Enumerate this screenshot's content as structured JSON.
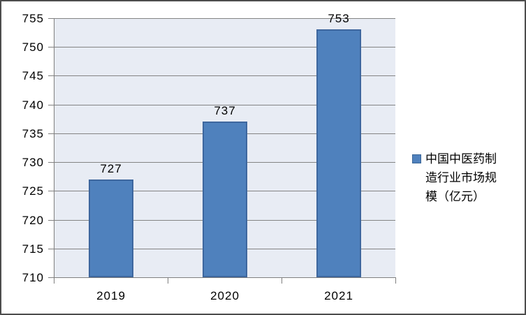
{
  "chart_data": {
    "type": "bar",
    "title": "",
    "categories": [
      "2019",
      "2020",
      "2021"
    ],
    "values": [
      727,
      737,
      753
    ],
    "bar_labels": [
      "727",
      "737",
      "753"
    ],
    "legend": {
      "label": "中国中医药制造行业市场规模（亿元）",
      "position": "right"
    },
    "xlabel": "",
    "ylabel": "",
    "ylim": [
      710,
      755
    ],
    "ytick_step": 5,
    "ytick_labels": [
      "710",
      "715",
      "720",
      "725",
      "730",
      "735",
      "740",
      "745",
      "750",
      "755"
    ],
    "grid": true,
    "colors": {
      "bar_fill": "#4f81bd",
      "bar_border": "#3e679e",
      "plot_background": "#e8ecf4",
      "gridline": "#848484",
      "axis": "#7f7f7f",
      "text": "#000000",
      "frame_border": "#4d4d4d"
    }
  }
}
